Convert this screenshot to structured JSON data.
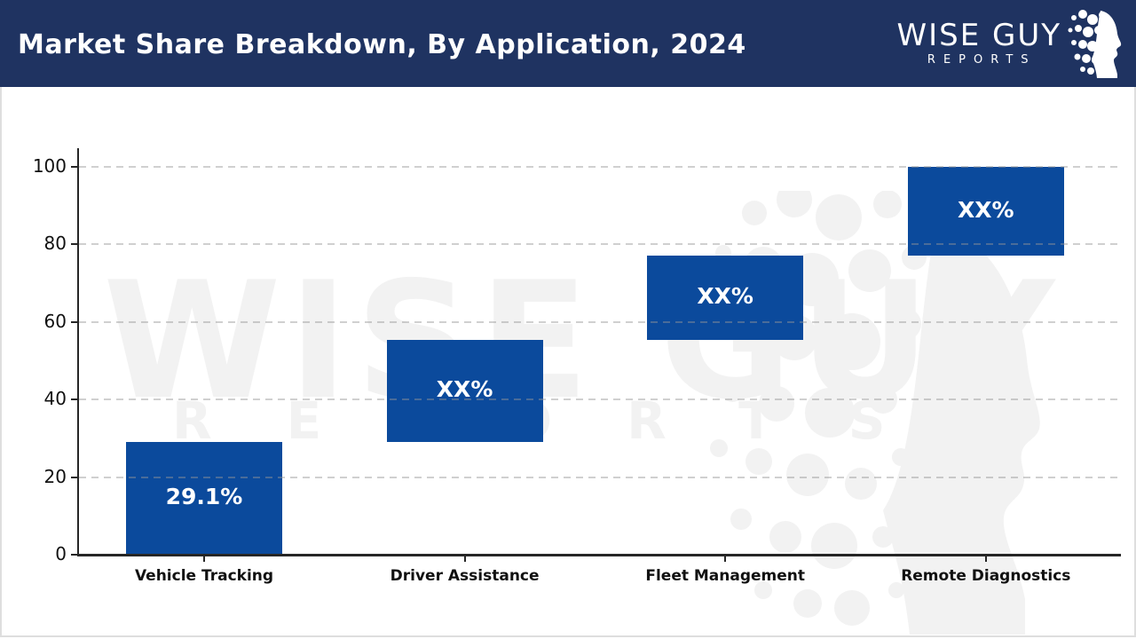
{
  "header": {
    "title": "Market Share Breakdown, By Application, 2024",
    "bg_color": "#1f3361",
    "logo": {
      "line1": "WISE GUY",
      "line2": "REPORTS"
    }
  },
  "watermark": {
    "line1": "WISE GUY",
    "line2": "REPORTS"
  },
  "chart_data": {
    "type": "bar",
    "subtype": "floating-waterfall",
    "title": "Market Share Breakdown, By Application, 2024",
    "categories": [
      "Vehicle Tracking",
      "Driver Assistance",
      "Fleet Management",
      "Remote Diagnostics"
    ],
    "segments": [
      {
        "category": "Vehicle Tracking",
        "start": 0,
        "end": 29.1,
        "label": "29.1%"
      },
      {
        "category": "Driver Assistance",
        "start": 29.1,
        "end": 55.4,
        "label": "XX%"
      },
      {
        "category": "Fleet Management",
        "start": 55.4,
        "end": 77.1,
        "label": "XX%"
      },
      {
        "category": "Remote Diagnostics",
        "start": 77.1,
        "end": 100,
        "label": "XX%"
      }
    ],
    "ylim": [
      0,
      100
    ],
    "yticks": [
      0,
      20,
      40,
      60,
      80,
      100
    ],
    "xlabel": "",
    "ylabel": "",
    "grid": "horizontal-dashed",
    "legend": "none",
    "bar_color": "#0b4a9c",
    "bar_label_color": "#ffffff"
  }
}
